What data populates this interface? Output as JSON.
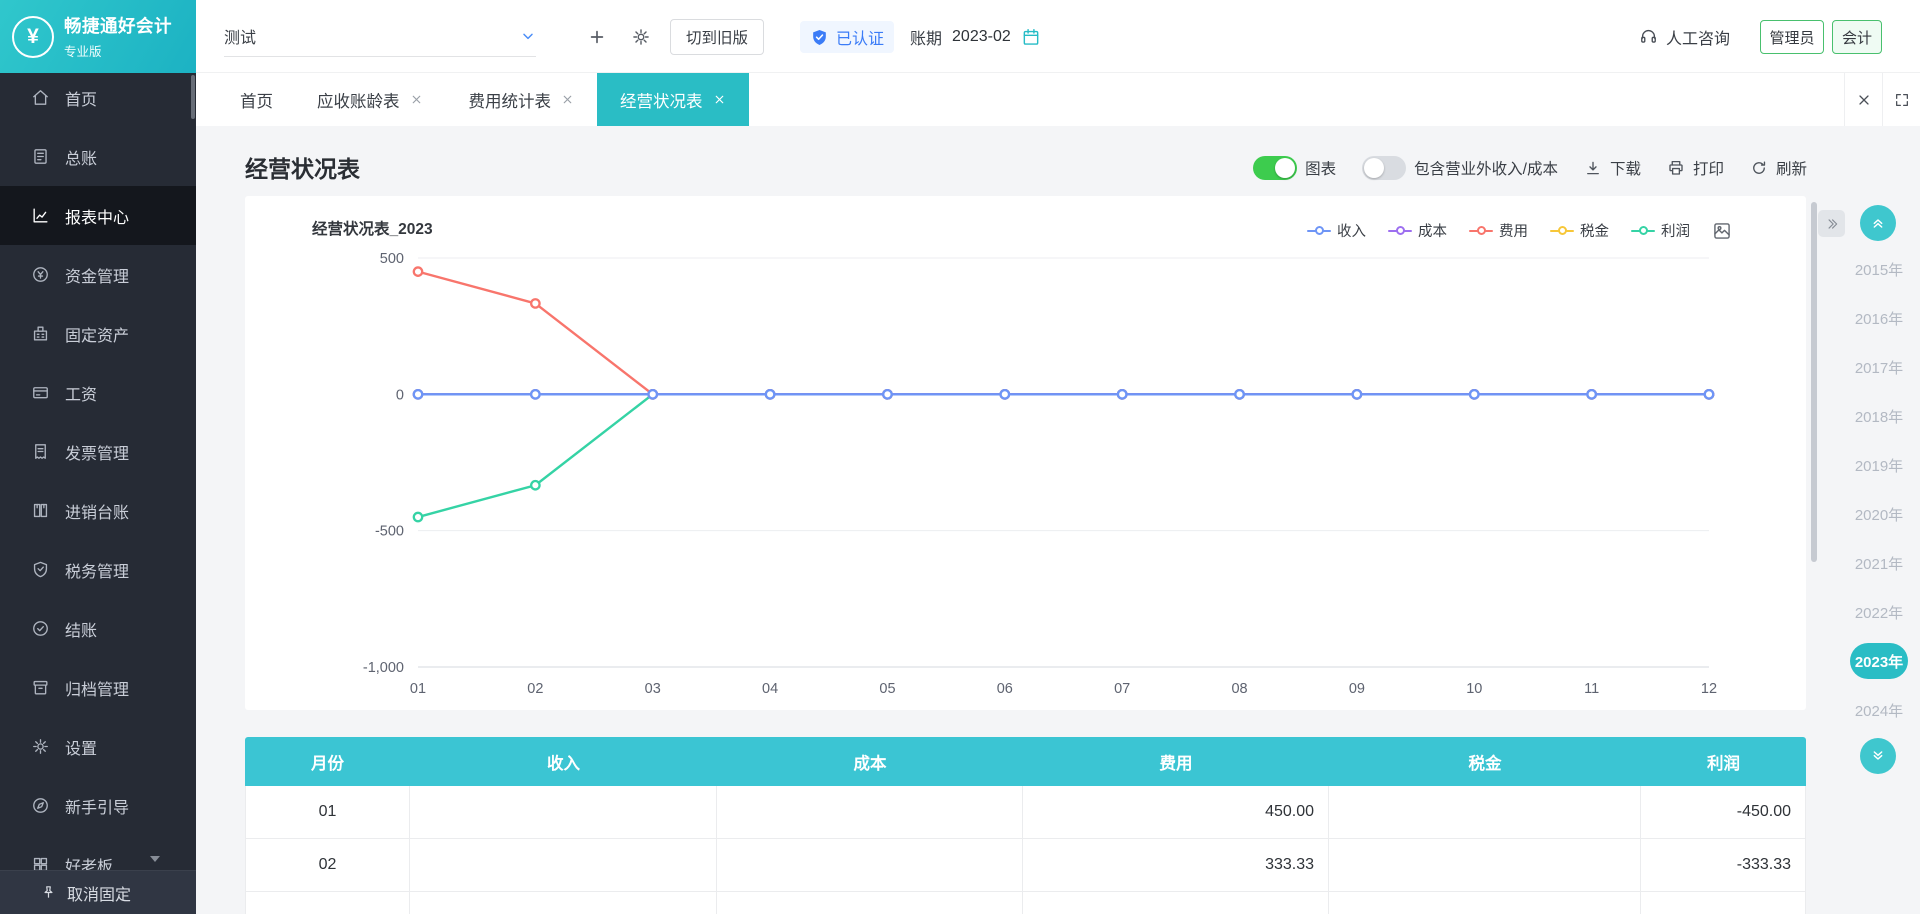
{
  "brand": {
    "name": "畅捷通好会计",
    "edition": "专业版",
    "logo_symbol": "¥"
  },
  "topbar": {
    "company": "测试",
    "switch_old_label": "切到旧版",
    "certified_label": "已认证",
    "period_label": "账期",
    "period_value": "2023-02",
    "support_label": "人工咨询",
    "admin_label": "管理员",
    "role_label": "会计"
  },
  "sidebar": {
    "items": [
      {
        "label": "首页"
      },
      {
        "label": "总账"
      },
      {
        "label": "报表中心"
      },
      {
        "label": "资金管理"
      },
      {
        "label": "固定资产"
      },
      {
        "label": "工资"
      },
      {
        "label": "发票管理"
      },
      {
        "label": "进销台账"
      },
      {
        "label": "税务管理"
      },
      {
        "label": "结账"
      },
      {
        "label": "归档管理"
      },
      {
        "label": "设置"
      },
      {
        "label": "新手引导"
      },
      {
        "label": "好老板"
      }
    ],
    "active_item": "报表中心",
    "unpin_label": "取消固定"
  },
  "tabs": [
    {
      "label": "首页"
    },
    {
      "label": "应收账龄表"
    },
    {
      "label": "费用统计表"
    },
    {
      "label": "经营状况表"
    }
  ],
  "page": {
    "title": "经营状况表",
    "chart_toggle_label": "图表",
    "nonop_toggle_label": "包含营业外收入/成本",
    "download_label": "下载",
    "print_label": "打印",
    "refresh_label": "刷新"
  },
  "chart_data": {
    "type": "line",
    "title": "经营状况表_2023",
    "x": [
      "01",
      "02",
      "03",
      "04",
      "05",
      "06",
      "07",
      "08",
      "09",
      "10",
      "11",
      "12"
    ],
    "ylim": [
      -1000,
      500
    ],
    "yticks": [
      500,
      0,
      -500,
      -1000
    ],
    "ytick_labels": [
      "500",
      "0",
      "-500",
      "-1,000"
    ],
    "grid": true,
    "legend_position": "top-right",
    "series": [
      {
        "name": "收入",
        "color": "#6E95F6",
        "values": [
          0,
          0,
          0,
          0,
          0,
          0,
          0,
          0,
          0,
          0,
          0,
          0
        ]
      },
      {
        "name": "成本",
        "color": "#9D6FF0",
        "values": [
          0,
          0,
          0,
          0,
          0,
          0,
          0,
          0,
          0,
          0,
          0,
          0
        ]
      },
      {
        "name": "费用",
        "color": "#F8756C",
        "values": [
          450,
          333.33,
          0,
          0,
          0,
          0,
          0,
          0,
          0,
          0,
          0,
          0
        ]
      },
      {
        "name": "税金",
        "color": "#F7C739",
        "values": [
          0,
          0,
          0,
          0,
          0,
          0,
          0,
          0,
          0,
          0,
          0,
          0
        ]
      },
      {
        "name": "利润",
        "color": "#35D3A5",
        "values": [
          -450,
          -333.33,
          0,
          0,
          0,
          0,
          0,
          0,
          0,
          0,
          0,
          0
        ]
      }
    ]
  },
  "table": {
    "headers": [
      "月份",
      "收入",
      "成本",
      "费用",
      "税金",
      "利润"
    ],
    "rows": [
      [
        "01",
        "",
        "",
        "450.00",
        "",
        "-450.00"
      ],
      [
        "02",
        "",
        "",
        "333.33",
        "",
        "-333.33"
      ]
    ]
  },
  "year_panel": {
    "years": [
      "2015年",
      "2016年",
      "2017年",
      "2018年",
      "2019年",
      "2020年",
      "2021年",
      "2022年",
      "2023年",
      "2024年"
    ],
    "active_year": "2023年"
  },
  "colors": {
    "brand_teal": "#2ABDC5",
    "table_header_teal": "#3BC5D3",
    "toggle_on_green": "#3DCC4E",
    "certified_blue": "#3B7CF7"
  },
  "icons": {
    "sidebar": [
      "home-icon",
      "ledger-icon",
      "report-icon",
      "funds-icon",
      "building-icon",
      "salary-card-icon",
      "invoice-icon",
      "books-icon",
      "shield-icon",
      "check-circle-icon",
      "archive-icon",
      "gear-icon",
      "compass-icon",
      "grid-icon"
    ],
    "topbar": [
      "chevron-down-icon",
      "plus-icon",
      "gear-icon",
      "shield-certified-icon",
      "calendar-icon",
      "headset-icon"
    ],
    "page": [
      "download-icon",
      "printer-icon",
      "refresh-icon",
      "save-image-icon"
    ],
    "tabbar": [
      "close-icon",
      "fullscreen-icon"
    ],
    "misc": [
      "pin-icon",
      "double-chevron-up-icon",
      "double-chevron-down-icon",
      "double-chevron-right-icon"
    ]
  }
}
